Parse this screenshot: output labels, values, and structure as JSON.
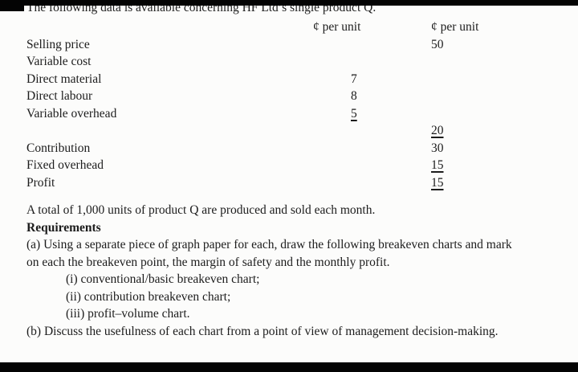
{
  "document": {
    "intro": "The following data is available concerning HF Ltd’s single product Q.",
    "table": {
      "col1_header": "¢ per unit",
      "col2_header": "¢ per unit",
      "rows": [
        {
          "label": "Selling price",
          "col1": "",
          "col2": "50"
        },
        {
          "label": "Variable cost",
          "col1": "",
          "col2": ""
        },
        {
          "label": "Direct material",
          "col1": "7",
          "col2": ""
        },
        {
          "label": "Direct labour",
          "col1": "8",
          "col2": ""
        },
        {
          "label": "Variable overhead",
          "col1": "5",
          "col2": ""
        },
        {
          "label": "",
          "col1": "",
          "col2": "20"
        },
        {
          "label": "Contribution",
          "col1": "",
          "col2": "30"
        },
        {
          "label": "Fixed overhead",
          "col1": "",
          "col2": "15"
        },
        {
          "label": "Profit",
          "col1": "",
          "col2": "15"
        }
      ]
    },
    "units_note": "A total of 1,000 units of product Q are produced and sold each month.",
    "requirements_heading": "Requirements",
    "req_a_line1": "(a) Using a separate piece of graph paper for each, draw the following breakeven charts and mark",
    "req_a_line2": "on each the breakeven point, the margin of safety and the monthly profit.",
    "req_a_items": [
      "(i) conventional/basic breakeven chart;",
      "(ii) contribution breakeven chart;",
      "(iii) profit–volume chart."
    ],
    "req_b": "(b) Discuss the usefulness of each chart from a point of view of management decision-making."
  }
}
